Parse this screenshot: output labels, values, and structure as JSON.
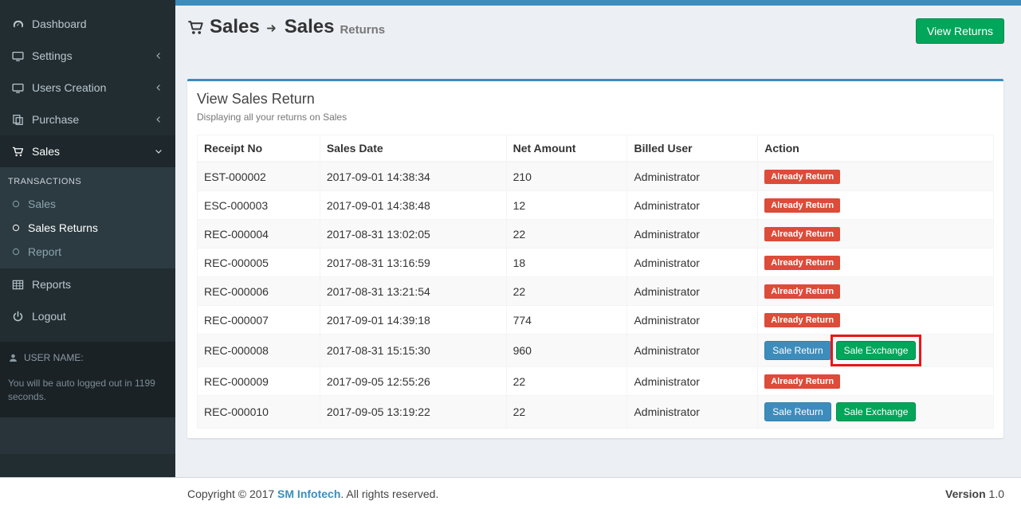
{
  "colors": {
    "accent_blue": "#3c8dbc",
    "success_green": "#00a65a",
    "danger_red": "#dd4b39",
    "annotation_red": "#e81717",
    "sidebar_dark": "#222d32"
  },
  "sidebar": {
    "items": [
      {
        "label": "Dashboard"
      },
      {
        "label": "Settings"
      },
      {
        "label": "Users Creation"
      },
      {
        "label": "Purchase"
      },
      {
        "label": "Sales"
      }
    ],
    "transactions_header": "TRANSACTIONS",
    "submenu": [
      {
        "label": "Sales"
      },
      {
        "label": "Sales Returns"
      },
      {
        "label": "Report"
      }
    ],
    "reports_label": "Reports",
    "logout_label": "Logout",
    "user_label": "USER NAME:",
    "auto_logout_text": "You will be auto logged out in 1199 seconds."
  },
  "header": {
    "breadcrumb_primary": "Sales",
    "breadcrumb_secondary": "Sales",
    "breadcrumb_small": "Returns",
    "view_returns_button": "View Returns"
  },
  "box": {
    "title": "View Sales Return",
    "subtitle": "Displaying all your returns on Sales"
  },
  "table": {
    "columns": [
      "Receipt No",
      "Sales Date",
      "Net Amount",
      "Billed User",
      "Action"
    ],
    "action_labels": {
      "already_return": "Already Return",
      "sale_return": "Sale Return",
      "sale_exchange": "Sale Exchange"
    },
    "rows": [
      {
        "receipt_no": "EST-000002",
        "sales_date": "2017-09-01 14:38:34",
        "net_amount": "210",
        "billed_user": "Administrator",
        "actions": [
          "already_return"
        ],
        "highlight": false
      },
      {
        "receipt_no": "ESC-000003",
        "sales_date": "2017-09-01 14:38:48",
        "net_amount": "12",
        "billed_user": "Administrator",
        "actions": [
          "already_return"
        ],
        "highlight": false
      },
      {
        "receipt_no": "REC-000004",
        "sales_date": "2017-08-31 13:02:05",
        "net_amount": "22",
        "billed_user": "Administrator",
        "actions": [
          "already_return"
        ],
        "highlight": false
      },
      {
        "receipt_no": "REC-000005",
        "sales_date": "2017-08-31 13:16:59",
        "net_amount": "18",
        "billed_user": "Administrator",
        "actions": [
          "already_return"
        ],
        "highlight": false
      },
      {
        "receipt_no": "REC-000006",
        "sales_date": "2017-08-31 13:21:54",
        "net_amount": "22",
        "billed_user": "Administrator",
        "actions": [
          "already_return"
        ],
        "highlight": false
      },
      {
        "receipt_no": "REC-000007",
        "sales_date": "2017-09-01 14:39:18",
        "net_amount": "774",
        "billed_user": "Administrator",
        "actions": [
          "already_return"
        ],
        "highlight": false
      },
      {
        "receipt_no": "REC-000008",
        "sales_date": "2017-08-31 15:15:30",
        "net_amount": "960",
        "billed_user": "Administrator",
        "actions": [
          "sale_return",
          "sale_exchange"
        ],
        "highlight": true
      },
      {
        "receipt_no": "REC-000009",
        "sales_date": "2017-09-05 12:55:26",
        "net_amount": "22",
        "billed_user": "Administrator",
        "actions": [
          "already_return"
        ],
        "highlight": false
      },
      {
        "receipt_no": "REC-000010",
        "sales_date": "2017-09-05 13:19:22",
        "net_amount": "22",
        "billed_user": "Administrator",
        "actions": [
          "sale_return",
          "sale_exchange"
        ],
        "highlight": false
      }
    ]
  },
  "footer": {
    "copyright_prefix": "Copyright © 2017 ",
    "company": "SM Infotech",
    "copyright_suffix": ". All rights reserved.",
    "version_label": "Version",
    "version_value": "1.0"
  }
}
